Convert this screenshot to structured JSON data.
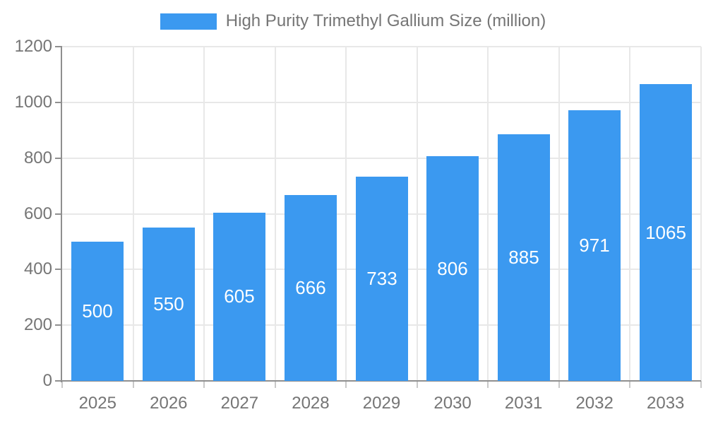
{
  "legend": {
    "label": "High Purity Trimethyl Gallium Size (million)"
  },
  "colors": {
    "bar": "#3b99f0",
    "axis": "#8f8f8f",
    "grid": "#e8e8e8",
    "tick": "#c9c9c9",
    "label": "#757575",
    "bar_label": "#ffffff"
  },
  "chart_data": {
    "type": "bar",
    "title": "High Purity Trimethyl Gallium Size (million)",
    "categories": [
      "2025",
      "2026",
      "2027",
      "2028",
      "2029",
      "2030",
      "2031",
      "2032",
      "2033"
    ],
    "values": [
      500,
      550,
      605,
      666,
      733,
      806,
      885,
      971,
      1065
    ],
    "series_name": "High Purity Trimethyl Gallium Size (million)",
    "xlabel": "",
    "ylabel": "",
    "ylim": [
      0,
      1200
    ],
    "yticks": [
      0,
      200,
      400,
      600,
      800,
      1000,
      1200
    ],
    "grid": true,
    "legend_position": "top",
    "bar_labels": "inside-center"
  }
}
